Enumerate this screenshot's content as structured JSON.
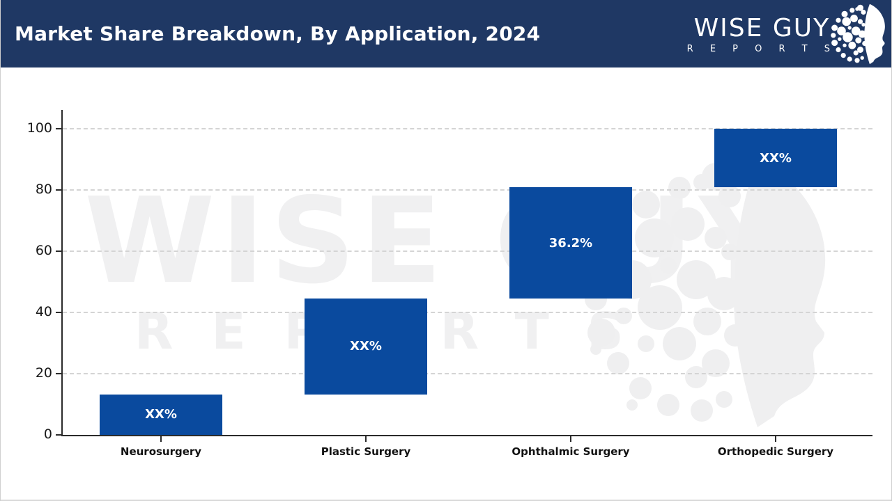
{
  "header": {
    "title": "Market Share Breakdown, By Application, 2024",
    "logo": {
      "primary": "WISE GUY",
      "secondary": "R E P O R T S",
      "head_icon": "dotted-head-profile-icon"
    }
  },
  "watermark": {
    "primary": "WISE GUY",
    "secondary": "REPORTS",
    "head_icon": "dotted-head-profile-icon"
  },
  "colors": {
    "header_bg": "#1f3864",
    "bar": "#0a4a9e",
    "bar_label": "#ffffff",
    "watermark": "#f0f0f1",
    "grid": "#d4d4d4",
    "axis": "#2b2b2b"
  },
  "chart_data": {
    "type": "bar",
    "subtype": "waterfall",
    "title": "Market Share Breakdown, By Application, 2024",
    "categories": [
      "Neurosurgery",
      "Plastic Surgery",
      "Ophthalmic Surgery",
      "Orthopedic Surgery"
    ],
    "segments": [
      {
        "category": "Neurosurgery",
        "start": 0,
        "end": 13.2,
        "value": 13.2,
        "label": "XX%"
      },
      {
        "category": "Plastic Surgery",
        "start": 13.2,
        "end": 44.6,
        "value": 31.4,
        "label": "XX%"
      },
      {
        "category": "Ophthalmic Surgery",
        "start": 44.6,
        "end": 80.8,
        "value": 36.2,
        "label": "36.2%"
      },
      {
        "category": "Orthopedic Surgery",
        "start": 80.8,
        "end": 100,
        "value": 19.2,
        "label": "XX%"
      }
    ],
    "ylim": [
      0,
      100
    ],
    "yticks": [
      0,
      20,
      40,
      60,
      80,
      100
    ],
    "xlabel": "",
    "ylabel": "",
    "grid": "horizontal-dashed",
    "legend": "none",
    "bar_color": "#0a4a9e",
    "bar_label_color": "#ffffff"
  }
}
